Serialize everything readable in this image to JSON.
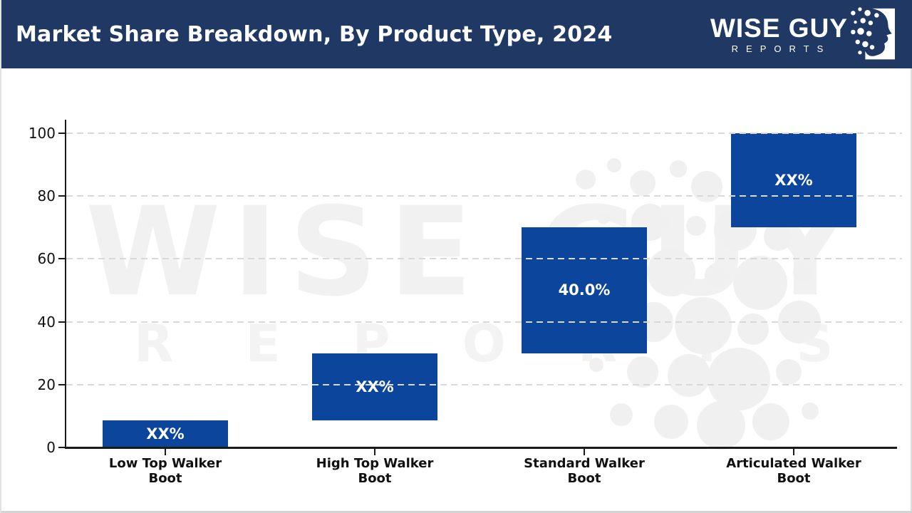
{
  "header": {
    "title": "Market Share Breakdown, By Product Type, 2024",
    "logo": {
      "primary": "WISE GUY",
      "secondary": "REPORTS"
    }
  },
  "watermark": {
    "primary": "WISE GUY",
    "secondary": "R E P O R T S"
  },
  "colors": {
    "header_bg": "#1f3864",
    "bar": "#0b459c",
    "bar_label": "#ffffff",
    "grid": "#d9d9d9",
    "axis": "#1a1a1a",
    "watermark": "#f1f1f1"
  },
  "chart_data": {
    "type": "bar",
    "subtype": "floating-waterfall",
    "title": "Market Share Breakdown, By Product Type, 2024",
    "xlabel": "",
    "ylabel": "",
    "categories": [
      "Low Top Walker Boot",
      "High Top Walker Boot",
      "Standard Walker Boot",
      "Articulated Walker Boot"
    ],
    "segments": [
      {
        "category": "Low Top Walker Boot",
        "start": 0,
        "end": 8.6,
        "label": "XX%"
      },
      {
        "category": "High Top Walker Boot",
        "start": 8.6,
        "end": 30,
        "label": "XX%"
      },
      {
        "category": "Standard Walker Boot",
        "start": 30,
        "end": 70,
        "label": "40.0%"
      },
      {
        "category": "Articulated Walker Boot",
        "start": 70,
        "end": 100,
        "label": "XX%"
      }
    ],
    "yticks": [
      0,
      20,
      40,
      60,
      80,
      100
    ],
    "ylim": [
      0,
      105
    ],
    "grid": "horizontal-dashed",
    "legend": "none",
    "bar_color": "#0b459c",
    "value_label_color": "#ffffff"
  }
}
